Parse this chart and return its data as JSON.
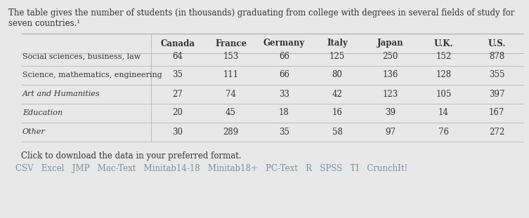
{
  "description_line1": "The table gives the number of students (in thousands) graduating from college with degrees in several fields of study for",
  "description_line2": "seven countries.¹",
  "columns": [
    "Canada",
    "France",
    "Germany",
    "Italy",
    "Japan",
    "U.K.",
    "U.S."
  ],
  "rows": [
    "Social sciences, business, law",
    "Science, mathematics, engineering",
    "Art and Humanities",
    "Education",
    "Other"
  ],
  "row_italic": [
    false,
    false,
    true,
    true,
    true
  ],
  "data": [
    [
      64,
      153,
      66,
      125,
      250,
      152,
      878
    ],
    [
      35,
      111,
      66,
      80,
      136,
      128,
      355
    ],
    [
      27,
      74,
      33,
      42,
      123,
      105,
      397
    ],
    [
      20,
      45,
      18,
      16,
      39,
      14,
      167
    ],
    [
      30,
      289,
      35,
      58,
      97,
      76,
      272
    ]
  ],
  "footer_line1": "Click to download the data in your preferred format.",
  "footer_line2": "CSV   Excel   JMP   Mac-Text   Minitab14-18   Minitab18+   PC-Text   R   SPSS   TI   CrunchIt!",
  "bg_color": "#e8e8e8",
  "text_color": "#333333",
  "link_color": "#7a8fa6",
  "line_color": "#aaaaaa",
  "header_fontsize": 8.5,
  "data_fontsize": 8.5,
  "row_label_fontsize": 8.0,
  "desc_fontsize": 8.5,
  "footer_fontsize": 8.5
}
